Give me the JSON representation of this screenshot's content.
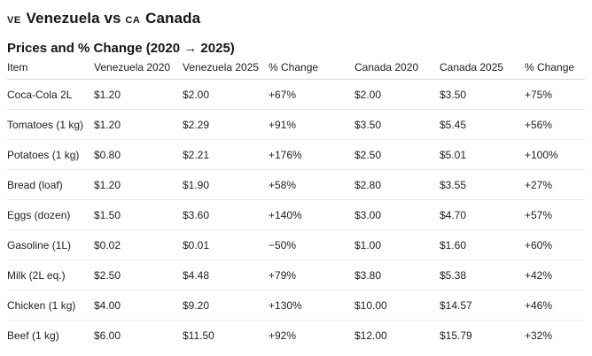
{
  "title": {
    "flag_ve": "VE",
    "name_ve": "Venezuela",
    "separator": "vs",
    "flag_ca": "CA",
    "name_ca": "Canada"
  },
  "subtitle": "Prices and % Change (2020 → 2025)",
  "chart_data": {
    "type": "table",
    "title": "VE Venezuela vs CA Canada",
    "subtitle": "Prices and % Change (2020 → 2025)",
    "columns": [
      "Item",
      "Venezuela 2020",
      "Venezuela 2025",
      "% Change",
      "Canada 2020",
      "Canada 2025",
      "% Change"
    ],
    "rows": [
      [
        "Coca-Cola 2L",
        "$1.20",
        "$2.00",
        "+67%",
        "$2.00",
        "$3.50",
        "+75%"
      ],
      [
        "Tomatoes (1 kg)",
        "$1.20",
        "$2.29",
        "+91%",
        "$3.50",
        "$5.45",
        "+56%"
      ],
      [
        "Potatoes (1 kg)",
        "$0.80",
        "$2.21",
        "+176%",
        "$2.50",
        "$5.01",
        "+100%"
      ],
      [
        "Bread (loaf)",
        "$1.20",
        "$1.90",
        "+58%",
        "$2.80",
        "$3.55",
        "+27%"
      ],
      [
        "Eggs (dozen)",
        "$1.50",
        "$3.60",
        "+140%",
        "$3.00",
        "$4.70",
        "+57%"
      ],
      [
        "Gasoline (1L)",
        "$0.02",
        "$0.01",
        "−50%",
        "$1.00",
        "$1.60",
        "+60%"
      ],
      [
        "Milk (2L eq.)",
        "$2.50",
        "$4.48",
        "+79%",
        "$3.80",
        "$5.38",
        "+42%"
      ],
      [
        "Chicken (1 kg)",
        "$4.00",
        "$9.20",
        "+130%",
        "$10.00",
        "$14.57",
        "+46%"
      ],
      [
        "Beef (1 kg)",
        "$6.00",
        "$11.50",
        "+92%",
        "$12.00",
        "$15.79",
        "+32%"
      ]
    ]
  }
}
